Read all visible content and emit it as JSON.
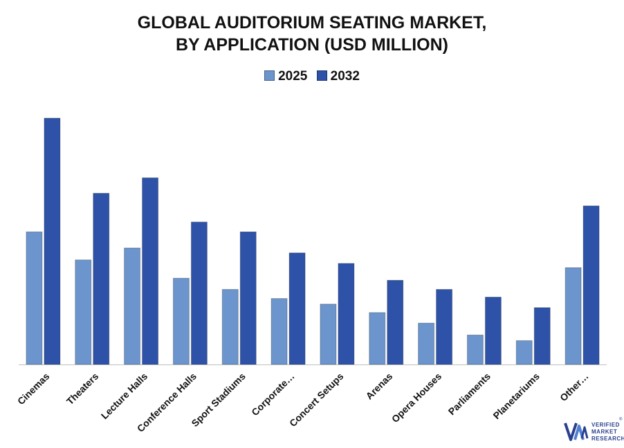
{
  "title": {
    "line1": "GLOBAL AUDITORIUM SEATING MARKET,",
    "line2": "BY APPLICATION (USD MILLION)"
  },
  "legend": {
    "series1": "2025",
    "series2": "2032"
  },
  "colors": {
    "series1": "#6b95cc",
    "series2": "#2e52a8",
    "axis": "#bfbfbf",
    "logo": "#2a3f8f"
  },
  "logo": {
    "line1": "VERIFIED",
    "line2": "MARKET",
    "line3": "RESEARCH",
    "reg": "®"
  },
  "chart_data": {
    "type": "bar",
    "title": "GLOBAL AUDITORIUM SEATING MARKET, BY APPLICATION (USD MILLION)",
    "xlabel": "",
    "ylabel": "",
    "categories": [
      "Cinemas",
      "Theaters",
      "Lecture Halls",
      "Conference Halls",
      "Sport Stadiums",
      "Corporate…",
      "Concert Setups",
      "Arenas",
      "Opera Houses",
      "Parliaments",
      "Planetariums",
      "Other…"
    ],
    "series": [
      {
        "name": "2025",
        "values": [
          189,
          149,
          166,
          123,
          107,
          94,
          86,
          74,
          59,
          42,
          34,
          138
        ]
      },
      {
        "name": "2032",
        "values": [
          351,
          244,
          266,
          203,
          189,
          159,
          144,
          120,
          107,
          96,
          81,
          226
        ]
      }
    ],
    "ylim": [
      0,
      360
    ],
    "grid": false,
    "legend_position": "top-center",
    "y_axis_visible": false
  }
}
